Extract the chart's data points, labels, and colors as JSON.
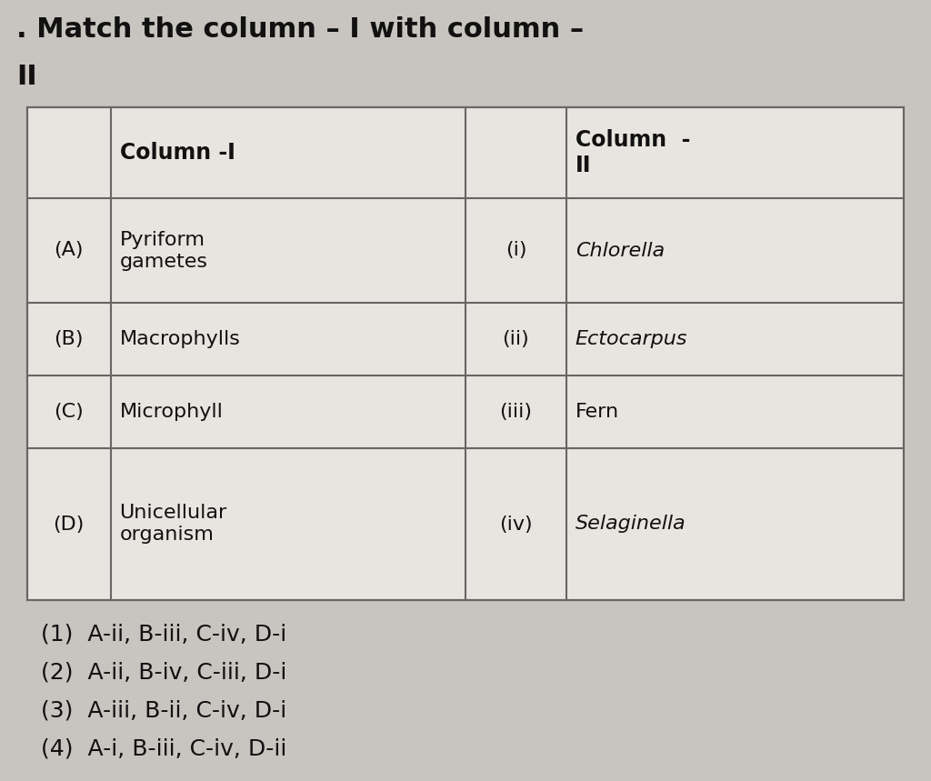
{
  "title_line1": ". Match the column – I with column –",
  "title_line2": "II",
  "title_fontsize": 22,
  "bg_color": "#c8c5c0",
  "table_bg": "#e8e5e0",
  "border_color": "#666666",
  "text_color": "#111111",
  "col1_header": "Column -I",
  "col2_header": "Column  -\nII",
  "col1_rows": [
    [
      "(A)",
      "Pyriform\ngametes"
    ],
    [
      "(B)",
      "Macrophylls"
    ],
    [
      "(C)",
      "Microphyll"
    ],
    [
      "(D)",
      "Unicellular\norganism"
    ]
  ],
  "col2_rows": [
    [
      "(i)",
      "Chlorella"
    ],
    [
      "(ii)",
      "Ectocarpus"
    ],
    [
      "(iii)",
      "Fern"
    ],
    [
      "(iv)",
      "Selaginella"
    ]
  ],
  "col2_italic": [
    true,
    true,
    false,
    true
  ],
  "options": [
    "(1)  A-ii, B-iii, C-iv, D-i",
    "(2)  A-ii, B-iv, C-iii, D-i",
    "(3)  A-iii, B-ii, C-iv, D-i",
    "(4)  A-i, B-iii, C-iv, D-ii"
  ],
  "options_fontsize": 18,
  "figsize": [
    10.24,
    8.59
  ],
  "dpi": 100
}
